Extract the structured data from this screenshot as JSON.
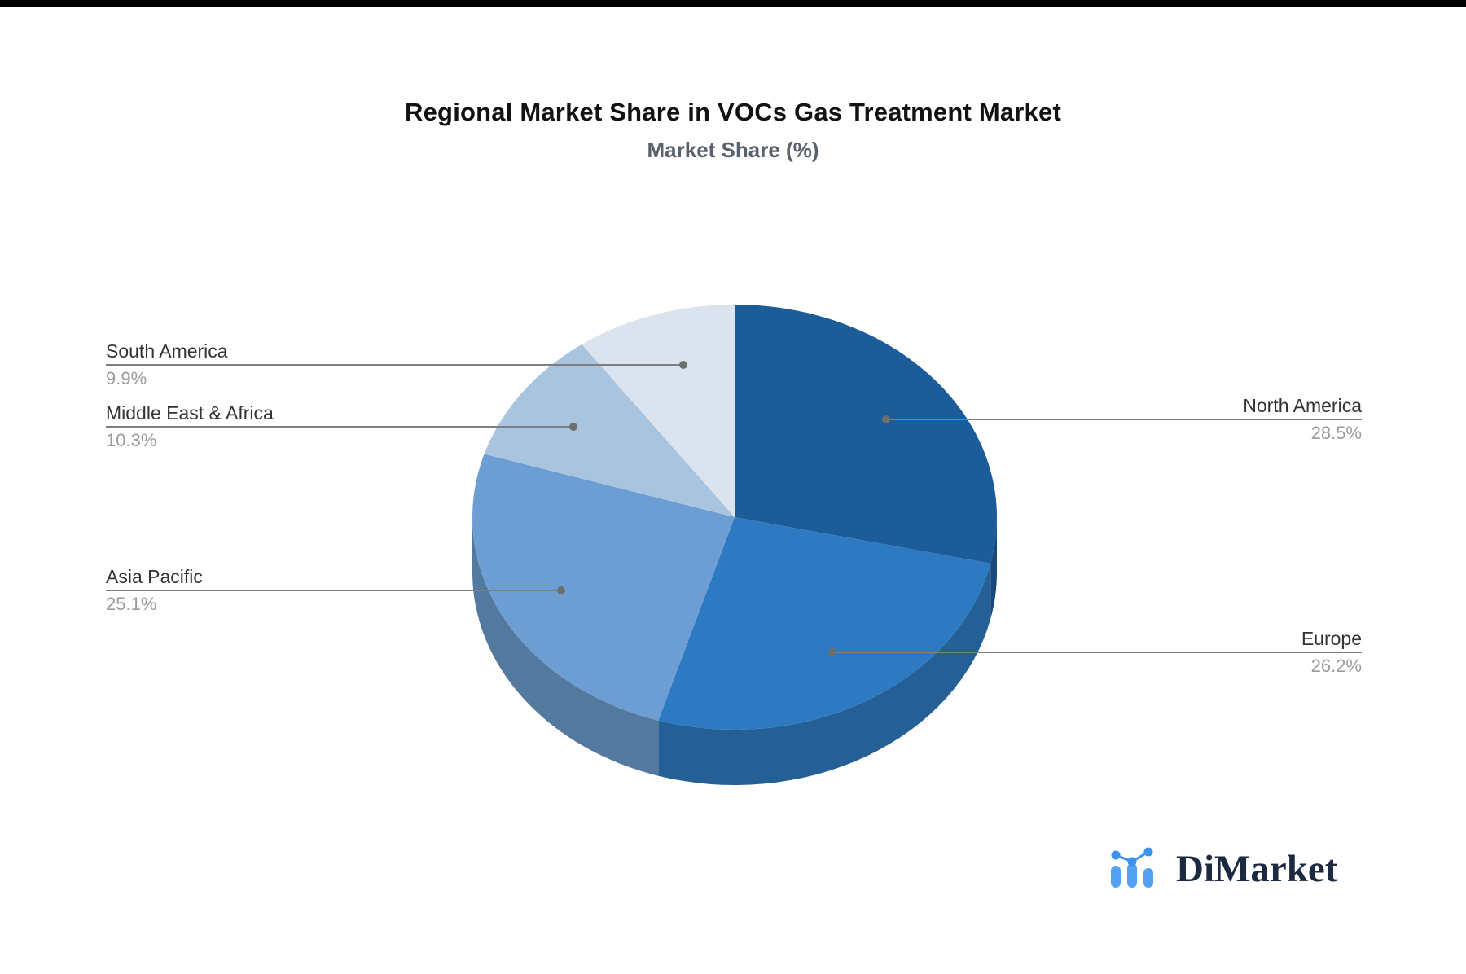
{
  "header": {
    "title": "Regional Market Share in VOCs Gas Treatment Market",
    "subtitle": "Market Share (%)"
  },
  "chart_data": {
    "type": "pie",
    "style": "3d",
    "title": "Regional Market Share in VOCs Gas Treatment Market",
    "subtitle": "Market Share (%)",
    "unit": "%",
    "start_angle_deg": 0,
    "direction": "clockwise",
    "categories": [
      "North America",
      "Europe",
      "Asia Pacific",
      "Middle East & Africa",
      "South America"
    ],
    "values": [
      28.5,
      26.2,
      25.1,
      10.3,
      9.9
    ],
    "value_labels": [
      "28.5%",
      "26.2%",
      "25.1%",
      "10.3%",
      "9.9%"
    ],
    "colors": [
      "#1B5C99",
      "#2E7AC2",
      "#6C9ED3",
      "#A9C4DF",
      "#DBE3EE"
    ],
    "rim_colors": [
      "#16497A",
      "#245F96",
      "#54799F",
      "#87A3C0",
      "#C0CCDD"
    ],
    "leader_line_color": "#7F7F7F",
    "leader_dot_color": "#6E6E6E",
    "label_color": "#333333",
    "value_color": "#9B9B9B",
    "legend": "none",
    "background": "#FFFFFF"
  },
  "watermark": {
    "brand": "DiMarket",
    "icon": "bar-line-chart-icon",
    "text_color": "#1C2940",
    "icon_color": "#55A1F1"
  }
}
